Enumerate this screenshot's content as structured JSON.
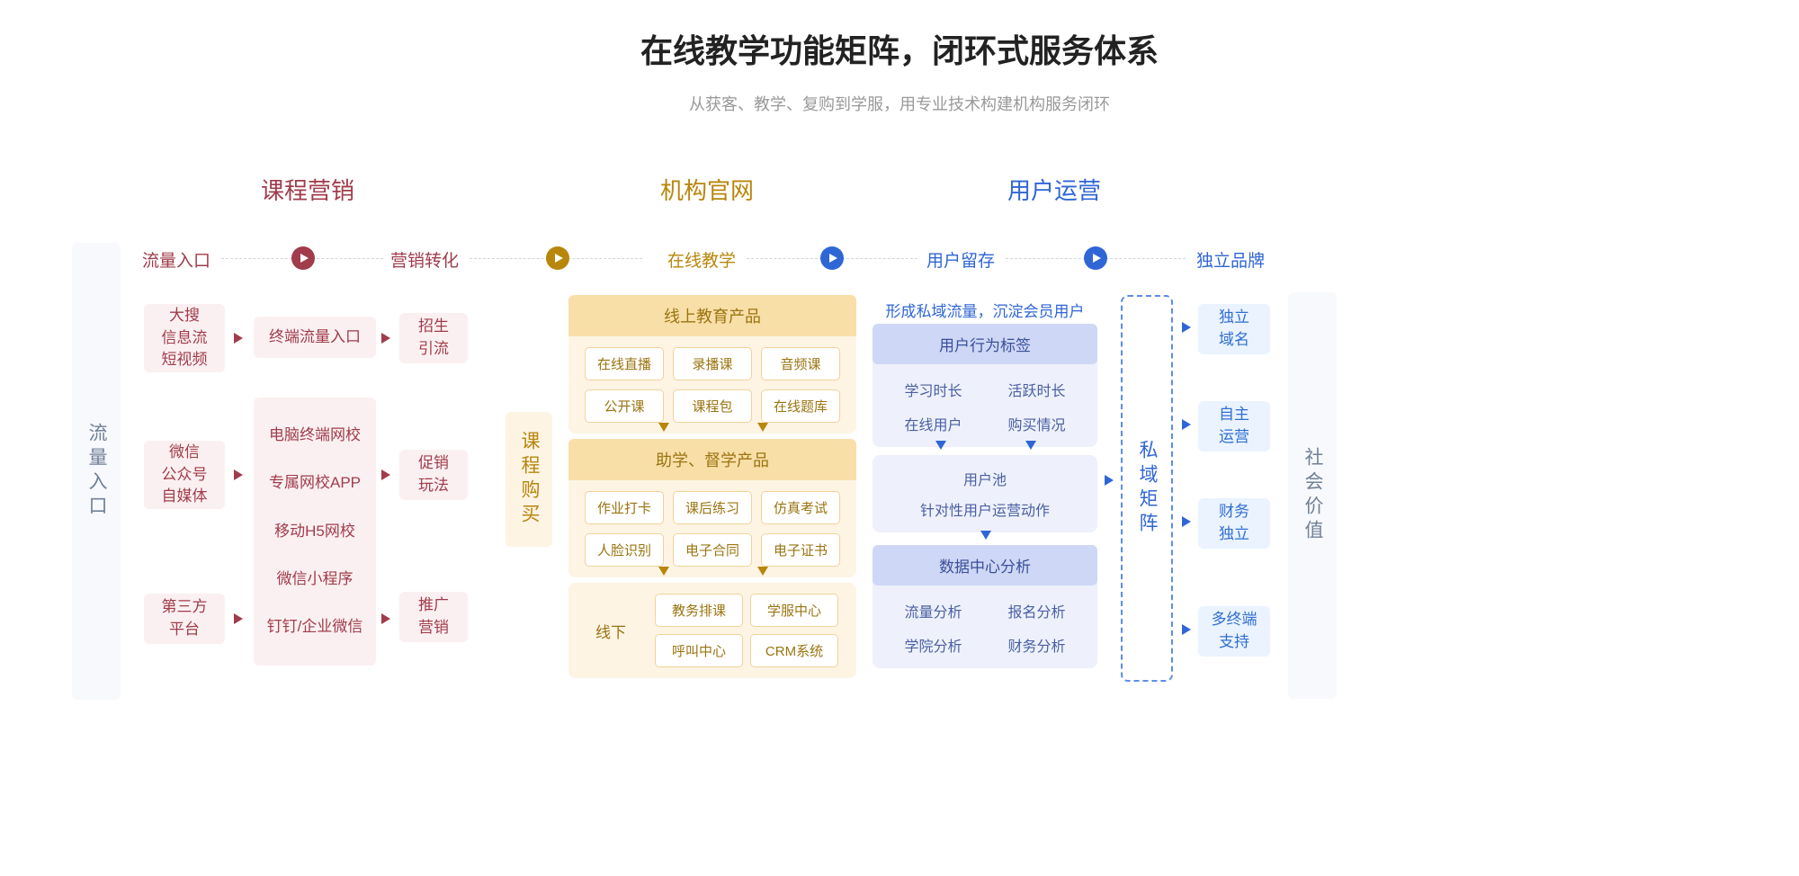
{
  "colors": {
    "title": "#222222",
    "subtitle": "#999999",
    "maroon": "#a03c4b",
    "maroon_box_bg": "#fbf0f1",
    "maroon_box_tx": "#a03c4b",
    "amber": "#b8860b",
    "amber_head": "#b8860b",
    "amber_panel_bg": "#fdf4e4",
    "amber_panel_title_bg": "#f8dfa8",
    "amber_chip_bg": "#ffffff",
    "amber_chip_border": "#f1d39a",
    "blue": "#2f66d6",
    "blue_head": "#2f66d6",
    "blue_panel_bg": "#eef1fb",
    "blue_panel_title_bg": "#ced7f5",
    "blue_tx": "#4a5fa3",
    "brand_bg": "#eaf3ff",
    "brand_tx": "#2f6fd1",
    "pill_amber_bg": "#fdf4e4",
    "pill_amber_tx": "#b8860b",
    "pill_gray_bg": "#f7f9fc",
    "pill_gray_tx": "#718096",
    "dashed_line": "#d0d4dc"
  },
  "header": {
    "title": "在线教学功能矩阵，闭环式服务体系",
    "subtitle": "从获客、教学、复购到学服，用专业技术构建机构服务闭环"
  },
  "sections": {
    "s1": {
      "label": "课程营销",
      "color": "#a03c4b"
    },
    "s2": {
      "label": "机构官网",
      "color": "#b8860b"
    },
    "s3": {
      "label": "用户运营",
      "color": "#2f66d6"
    }
  },
  "sub_labels": {
    "c1": "流量入口",
    "c2": "营销转化",
    "c3": "在线教学",
    "c4": "用户留存",
    "c5": "独立品牌"
  },
  "left_pill": "流量入口",
  "right_pill": "社会价值",
  "mid_pill": "课程购买",
  "dashed_pill": "私域矩阵",
  "marketing": {
    "sources": {
      "a": "大搜\n信息流\n短视频",
      "b": "微信\n公众号\n自媒体",
      "c": "第三方\n平台"
    },
    "channels": {
      "a": "终端流量入口",
      "b1": "电脑终端网校",
      "b2": "专属网校APP",
      "b3": "移动H5网校",
      "b4": "微信小程序",
      "b5": "钉钉/企业微信"
    },
    "convert": {
      "a": "招生\n引流",
      "b": "促销\n玩法",
      "c": "推广\n营销"
    }
  },
  "teaching": {
    "panel1": {
      "title": "线上教育产品",
      "items": [
        "在线直播",
        "录播课",
        "音频课",
        "公开课",
        "课程包",
        "在线题库"
      ]
    },
    "panel2": {
      "title": "助学、督学产品",
      "items": [
        "作业打卡",
        "课后练习",
        "仿真考试",
        "人脸识别",
        "电子合同",
        "电子证书"
      ]
    },
    "offline": {
      "label": "线下",
      "items": [
        "教务排课",
        "学服中心",
        "呼叫中心",
        "CRM系统"
      ]
    }
  },
  "userops": {
    "note": "形成私域流量，沉淀会员用户",
    "panel1": {
      "title": "用户行为标签",
      "items": [
        "学习时长",
        "活跃时长",
        "在线用户",
        "购买情况"
      ]
    },
    "mid": {
      "a": "用户池",
      "b": "针对性用户运营动作"
    },
    "panel2": {
      "title": "数据中心分析",
      "items": [
        "流量分析",
        "报名分析",
        "学院分析",
        "财务分析"
      ]
    }
  },
  "brand": {
    "a": "独立\n域名",
    "b": "自主\n运营",
    "c": "财务\n独立",
    "d": "多终端\n支持"
  }
}
